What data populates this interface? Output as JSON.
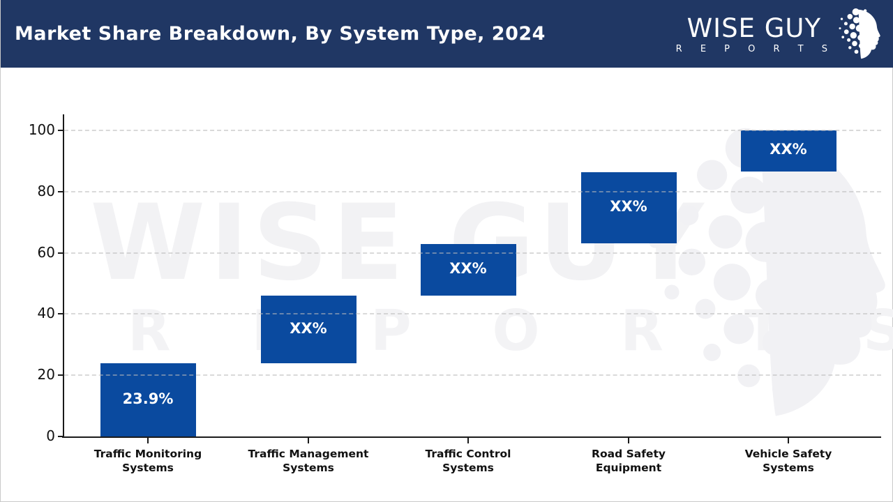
{
  "header": {
    "title": "Market Share Breakdown, By System Type, 2024",
    "background_color": "#203764",
    "logo": {
      "line1": "WISE GUY",
      "line2": "R E P O R T S"
    }
  },
  "watermark": {
    "line1": "WISE GUY",
    "line2": "R E P O R T S"
  },
  "chart_data": {
    "type": "bar",
    "subtype": "waterfall",
    "title": "Market Share Breakdown, By System Type, 2024",
    "xlabel": "",
    "ylabel": "",
    "ylim": [
      0,
      105
    ],
    "yticks": [
      0,
      20,
      40,
      60,
      80,
      100
    ],
    "grid": "horizontal-dashed",
    "legend": "none",
    "bar_color": "#0a4a9f",
    "label_color": "#ffffff",
    "categories": [
      "Traffic Monitoring\nSystems",
      "Traffic Management\nSystems",
      "Traffic Control\nSystems",
      "Road Safety\nEquipment",
      "Vehicle Safety\nSystems"
    ],
    "segments": [
      {
        "category": "Traffic Monitoring Systems",
        "start": 0,
        "end": 23.9,
        "label": "23.9%"
      },
      {
        "category": "Traffic Management Systems",
        "start": 23.9,
        "end": 46.0,
        "label": "XX%"
      },
      {
        "category": "Traffic Control Systems",
        "start": 46.0,
        "end": 62.8,
        "label": "XX%"
      },
      {
        "category": "Road Safety Equipment",
        "start": 63.0,
        "end": 86.4,
        "label": "XX%"
      },
      {
        "category": "Vehicle Safety Systems",
        "start": 86.6,
        "end": 100.0,
        "label": "XX%"
      }
    ]
  }
}
